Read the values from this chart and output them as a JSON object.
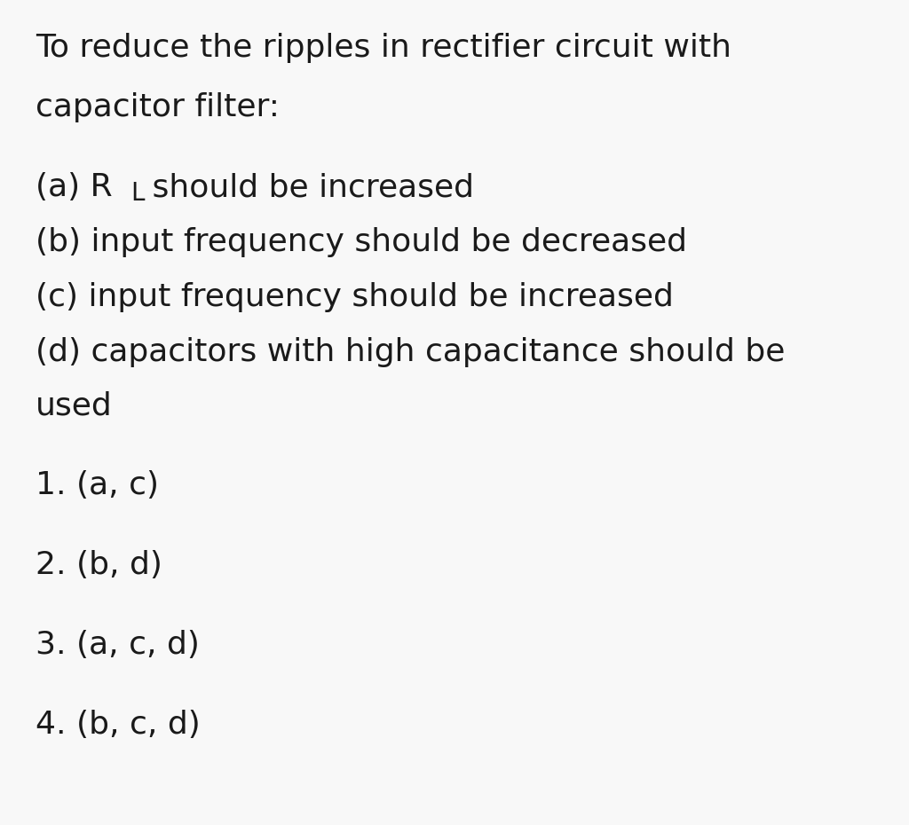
{
  "background_color": "#f8f8f8",
  "text_color": "#1a1a1a",
  "title_line1": "To reduce the ripples in rectifier circuit with",
  "title_line2": "capacitor filter:",
  "option_a_pre": "(a) R",
  "option_a_sub": "L",
  "option_a_post": " should be increased",
  "option_b": "(b) input frequency should be decreased",
  "option_c": "(c) input frequency should be increased",
  "option_d1": "(d) capacitors with high capacitance should be",
  "option_d2": "used",
  "answer1": "1. (a, c)",
  "answer2": "2. (b, d)",
  "answer3": "3. (a, c, d)",
  "answer4": "4. (b, c, d)",
  "font_size": 26,
  "font_size_sub": 20
}
